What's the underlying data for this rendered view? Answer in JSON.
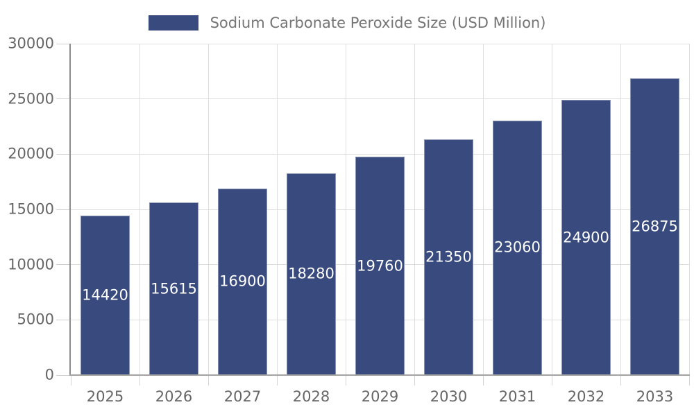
{
  "chart_data": {
    "type": "bar",
    "title": "Sodium Carbonate Peroxide Size (USD Million)",
    "categories": [
      "2025",
      "2026",
      "2027",
      "2028",
      "2029",
      "2030",
      "2031",
      "2032",
      "2033"
    ],
    "values": [
      14420,
      15615,
      16900,
      18280,
      19760,
      21350,
      23060,
      24900,
      26875
    ],
    "xlabel": "",
    "ylabel": "",
    "ylim": [
      0,
      30000
    ],
    "yticks": [
      0,
      5000,
      10000,
      15000,
      20000,
      25000,
      30000
    ],
    "grid": true,
    "legend_position": "top-center",
    "colors": {
      "bar": "#384a7e",
      "value_label": "#ffffff",
      "axis_label": "#666666",
      "legend_text": "#757575",
      "gridline": "#dedede",
      "background": "#ffffff"
    }
  }
}
